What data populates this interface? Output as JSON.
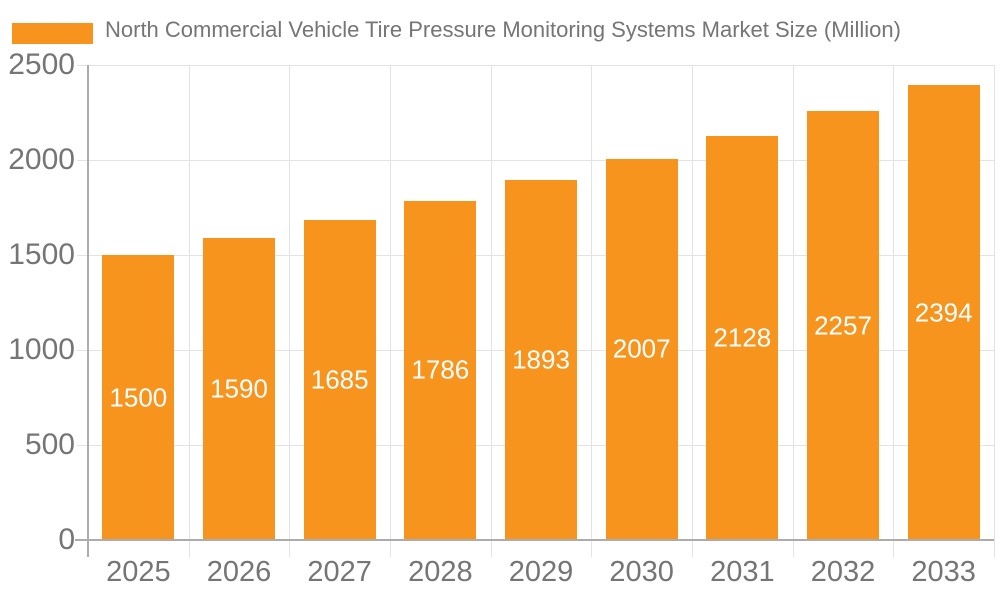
{
  "legend": {
    "label": "North Commercial Vehicle Tire Pressure Monitoring Systems Market Size (Million)",
    "swatch_color": "#F7941E"
  },
  "chart_data": {
    "type": "bar",
    "title": "North Commercial Vehicle Tire Pressure Monitoring Systems Market Size (Million)",
    "categories": [
      "2025",
      "2026",
      "2027",
      "2028",
      "2029",
      "2030",
      "2031",
      "2032",
      "2033"
    ],
    "values": [
      1500,
      1590,
      1685,
      1786,
      1893,
      2007,
      2128,
      2257,
      2394
    ],
    "xlabel": "",
    "ylabel": "",
    "ylim": [
      0,
      2500
    ],
    "yticks": [
      0,
      500,
      1000,
      1500,
      2000,
      2500
    ],
    "grid": true,
    "legend_position": "top-left",
    "value_label_position": "inside-center",
    "colors": {
      "bar": "#F7941E",
      "value_label": "#FFFFFF",
      "axis_text": "#757575",
      "axis_line": "#ACACAC",
      "gridline": "#E3E3E3",
      "background": "#FFFFFF"
    }
  }
}
